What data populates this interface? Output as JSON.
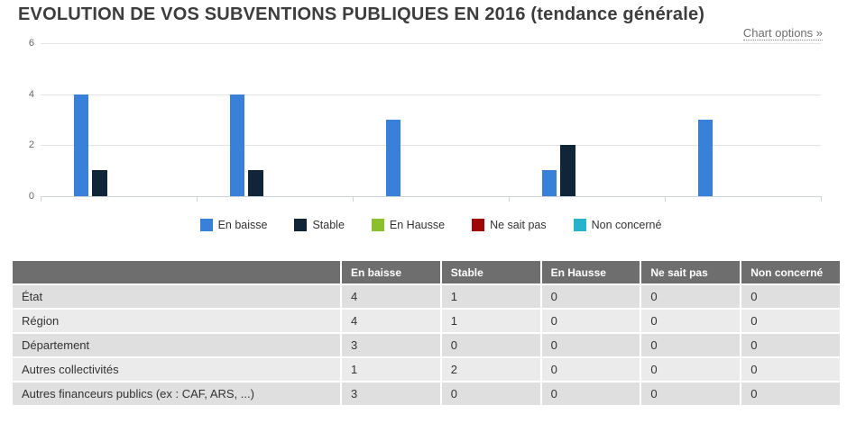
{
  "header": {
    "title": "EVOLUTION DE VOS SUBVENTIONS PUBLIQUES EN 2016 (tendance générale)",
    "chart_options_label": "Chart options »"
  },
  "chart_data": {
    "type": "bar",
    "title": "EVOLUTION DE VOS SUBVENTIONS PUBLIQUES EN 2016 (tendance générale)",
    "categories": [
      "État",
      "Région",
      "Département",
      "Autres collectivités",
      "Autres financeurs publics (ex : CAF, ARS, ...)"
    ],
    "series": [
      {
        "name": "En baisse",
        "color": "#3880d8",
        "values": [
          4,
          4,
          3,
          1,
          3
        ]
      },
      {
        "name": "Stable",
        "color": "#112539",
        "values": [
          1,
          1,
          0,
          2,
          0
        ]
      },
      {
        "name": "En Hausse",
        "color": "#8cbf2d",
        "values": [
          0,
          0,
          0,
          0,
          0
        ]
      },
      {
        "name": "Ne sait pas",
        "color": "#a00606",
        "values": [
          0,
          0,
          0,
          0,
          0
        ]
      },
      {
        "name": "Non concerné",
        "color": "#29b2cb",
        "values": [
          0,
          0,
          0,
          0,
          0
        ]
      }
    ],
    "yticks": [
      0,
      2,
      4,
      6
    ],
    "ylim": [
      0,
      6
    ],
    "xlabel": "",
    "ylabel": "",
    "grid": true,
    "legend_position": "bottom"
  },
  "table": {
    "columns": [
      "",
      "En baisse",
      "Stable",
      "En Hausse",
      "Ne sait pas",
      "Non concerné"
    ],
    "rows": [
      {
        "label": "État",
        "values": [
          4,
          1,
          0,
          0,
          0
        ]
      },
      {
        "label": "Région",
        "values": [
          4,
          1,
          0,
          0,
          0
        ]
      },
      {
        "label": "Département",
        "values": [
          3,
          0,
          0,
          0,
          0
        ]
      },
      {
        "label": "Autres collectivités",
        "values": [
          1,
          2,
          0,
          0,
          0
        ]
      },
      {
        "label": "Autres financeurs publics (ex : CAF, ARS, ...)",
        "values": [
          3,
          0,
          0,
          0,
          0
        ]
      }
    ]
  }
}
